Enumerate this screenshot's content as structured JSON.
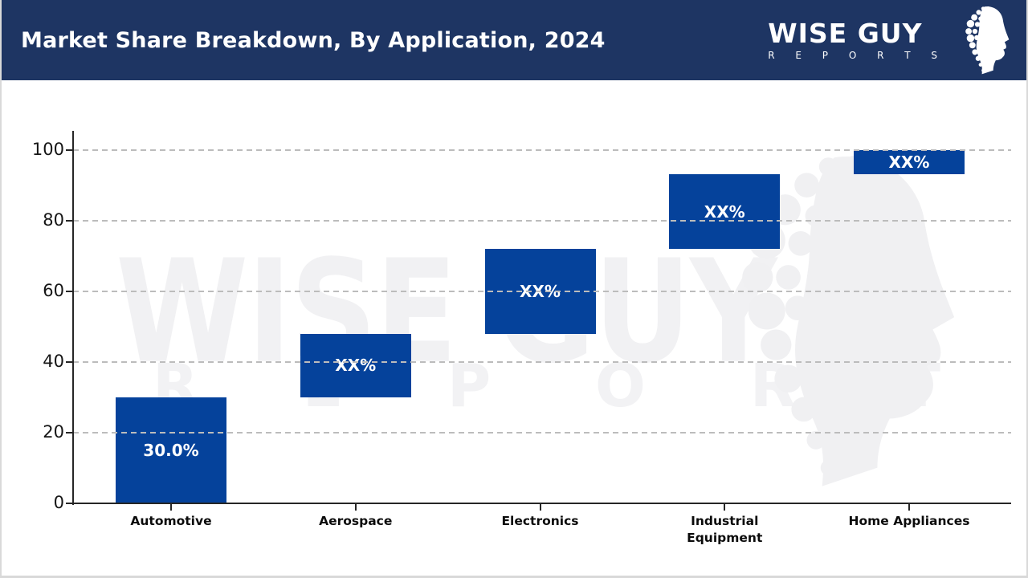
{
  "header": {
    "title": "Market Share Breakdown, By Application, 2024",
    "logo": {
      "line1": "WISE GUY",
      "line2": "R E P O R T S"
    }
  },
  "watermark": {
    "line1": "WISE GUY",
    "line2": "R E P O R T S"
  },
  "colors": {
    "header_bg": "#1e3563",
    "bar_blue": "#05429b",
    "axis": "#262626",
    "gridline": "#bcbcbc",
    "bar_label_text": "#ffffff",
    "watermark_gray": "#f1f1f3"
  },
  "chart_data": {
    "type": "bar",
    "subtype": "waterfall",
    "title": "Market Share Breakdown, By Application, 2024",
    "categories": [
      "Automotive",
      "Aerospace",
      "Electronics",
      "Industrial Equipment",
      "Home Appliances"
    ],
    "category_display": [
      "Automotive",
      "Aerospace",
      "Electronics",
      "Industrial\nEquipment",
      "Home Appliances"
    ],
    "segments": [
      {
        "category": "Automotive",
        "start": 0,
        "end": 30,
        "value": 30,
        "label": "30.0%"
      },
      {
        "category": "Aerospace",
        "start": 30,
        "end": 48,
        "value": 18,
        "label": "XX%"
      },
      {
        "category": "Electronics",
        "start": 48,
        "end": 72,
        "value": 24,
        "label": "XX%"
      },
      {
        "category": "Industrial Equipment",
        "start": 72,
        "end": 93,
        "value": 21,
        "label": "XX%"
      },
      {
        "category": "Home Appliances",
        "start": 93,
        "end": 100,
        "value": 7,
        "label": "XX%"
      }
    ],
    "yticks": [
      0,
      20,
      40,
      60,
      80,
      100
    ],
    "ylim": [
      0,
      105
    ],
    "xlabel": "",
    "ylabel": "",
    "grid": "horizontal-dashed, drawn over bars",
    "legend": "none"
  }
}
